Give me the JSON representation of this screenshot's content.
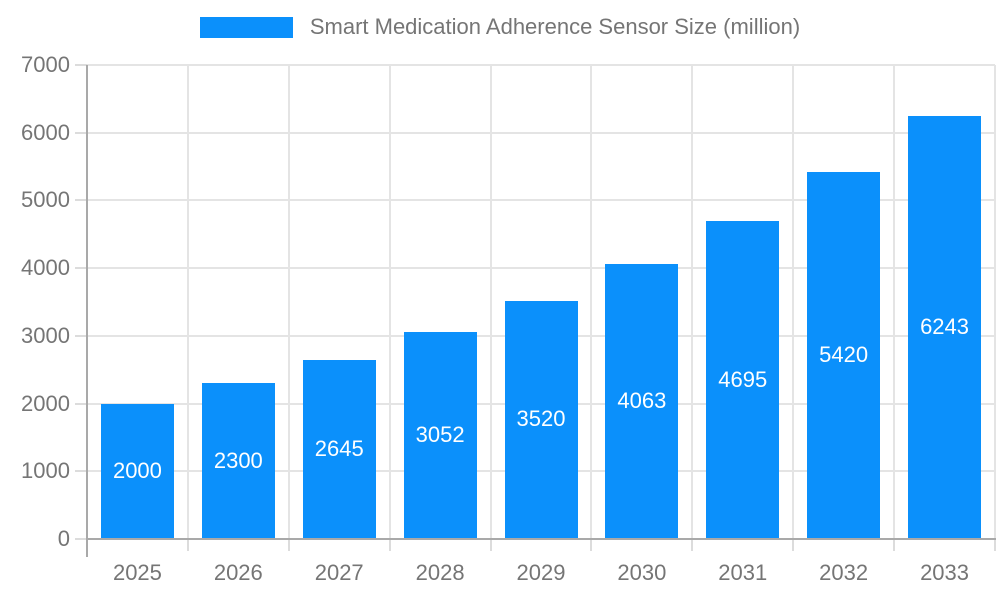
{
  "legend": {
    "label": "Smart Medication Adherence Sensor Size (million)",
    "swatch_color": "#0b90fb"
  },
  "chart_data": {
    "type": "bar",
    "title": "Smart Medication Adherence Sensor Size (million)",
    "series": [
      {
        "name": "Smart Medication Adherence Sensor Size (million)",
        "values": [
          2000,
          2300,
          2645,
          3052,
          3520,
          4063,
          4695,
          5420,
          6243
        ]
      }
    ],
    "categories": [
      "2025",
      "2026",
      "2027",
      "2028",
      "2029",
      "2030",
      "2031",
      "2032",
      "2033"
    ],
    "value_labels": [
      "2000",
      "2300",
      "2645",
      "3052",
      "3520",
      "4063",
      "4695",
      "5420",
      "6243"
    ],
    "xlabel": "",
    "ylabel": "",
    "ylim": [
      0,
      7000
    ],
    "y_ticks": [
      0,
      1000,
      2000,
      3000,
      4000,
      5000,
      6000,
      7000
    ],
    "grid": true,
    "legend_position": "top",
    "colors": {
      "bar": "#0b90fb",
      "grid": "#e4e4e4",
      "tick": "#dcdcdc",
      "axis": "#a9a9a9",
      "axis_text": "#757575",
      "value_text": "#ffffff",
      "background": "#ffffff"
    }
  }
}
